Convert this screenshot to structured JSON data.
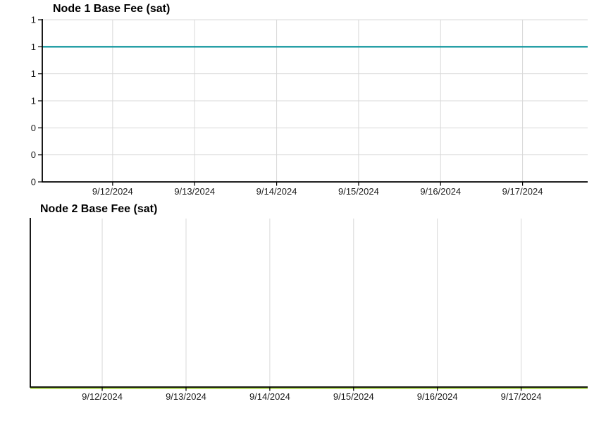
{
  "chart_data": [
    {
      "type": "line",
      "title": "Node 1 Base Fee (sat)",
      "x_tick_labels": [
        "9/12/2024",
        "9/13/2024",
        "9/14/2024",
        "9/15/2024",
        "9/16/2024",
        "9/17/2024"
      ],
      "y_tick_labels": [
        "1",
        "1",
        "1",
        "1",
        "0",
        "0",
        "0"
      ],
      "ylim": [
        0,
        1.2
      ],
      "xlabel": "",
      "ylabel": "",
      "legend": "none",
      "grid": {
        "horizontal": true,
        "vertical": true
      },
      "series": [
        {
          "name": "Node 1 Base Fee",
          "constant_value": 1,
          "x": [
            "9/12/2024",
            "9/13/2024",
            "9/14/2024",
            "9/15/2024",
            "9/16/2024",
            "9/17/2024"
          ],
          "values": [
            1,
            1,
            1,
            1,
            1,
            1
          ],
          "color": "#1899A1"
        }
      ],
      "colors": {
        "axis": "#000000",
        "grid": "#D8D8D8",
        "tick_text": "#1A1A1A",
        "title_text": "#000000"
      }
    },
    {
      "type": "line",
      "title": "Node 2 Base Fee (sat)",
      "x_tick_labels": [
        "9/12/2024",
        "9/13/2024",
        "9/14/2024",
        "9/15/2024",
        "9/16/2024",
        "9/17/2024"
      ],
      "y_tick_labels": [],
      "ylim": [
        0,
        1
      ],
      "xlabel": "",
      "ylabel": "",
      "legend": "none",
      "grid": {
        "horizontal": false,
        "vertical": true
      },
      "series": [
        {
          "name": "Node 2 Base Fee",
          "constant_value": 0,
          "x": [
            "9/12/2024",
            "9/13/2024",
            "9/14/2024",
            "9/15/2024",
            "9/16/2024",
            "9/17/2024"
          ],
          "values": [
            0,
            0,
            0,
            0,
            0,
            0
          ],
          "color": "#9DCB3B"
        }
      ],
      "colors": {
        "axis": "#000000",
        "grid": "#D8D8D8",
        "tick_text": "#1A1A1A",
        "title_text": "#000000"
      }
    }
  ]
}
